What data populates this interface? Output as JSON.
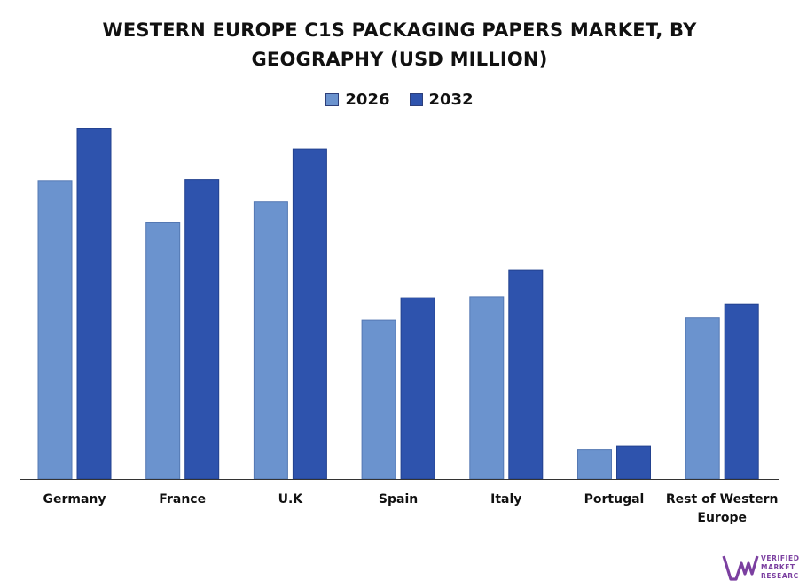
{
  "chart_data": {
    "type": "bar",
    "title_lines": [
      "WESTERN EUROPE C1S PACKAGING PAPERS MARKET, BY",
      "GEOGRAPHY (USD MILLION)"
    ],
    "categories": [
      [
        "Germany"
      ],
      [
        "France"
      ],
      [
        "U.K"
      ],
      [
        "Spain"
      ],
      [
        "Italy"
      ],
      [
        "Portugal"
      ],
      [
        "Rest of Western",
        "Europe"
      ]
    ],
    "series": [
      {
        "name": "2026",
        "color": "#6b93ce",
        "values": [
          283,
          243,
          263,
          151,
          173,
          28,
          153
        ]
      },
      {
        "name": "2032",
        "color": "#2e53ad",
        "values": [
          332,
          284,
          313,
          172,
          198,
          31,
          166
        ]
      }
    ],
    "ylim": [
      0,
      350
    ],
    "grid": false,
    "legend_position": "top-center"
  },
  "logo": {
    "lines": [
      "VERIFIED",
      "MARKET",
      "RESEARCH"
    ],
    "color": "#7b3fa0"
  }
}
